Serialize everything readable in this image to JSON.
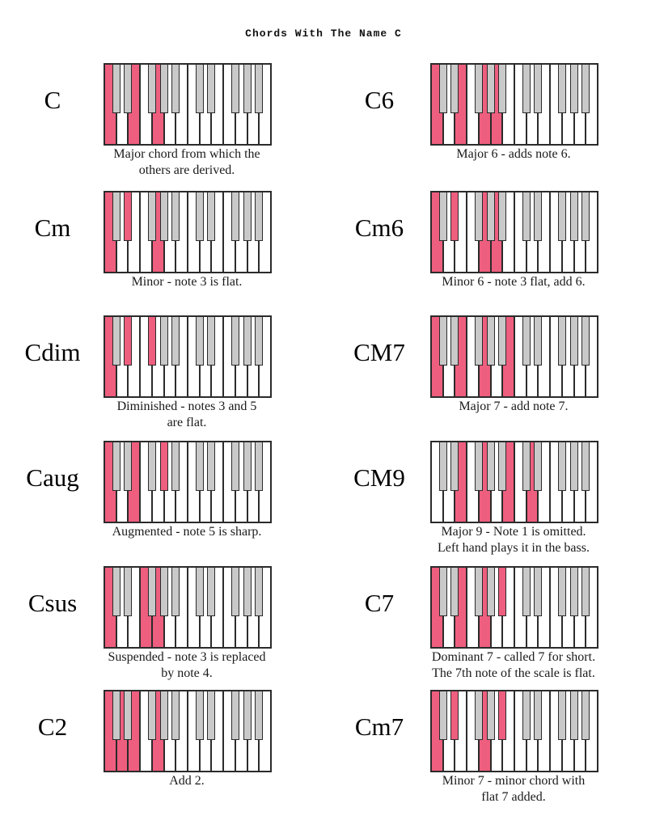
{
  "title": "Chords With The Name C",
  "colors": {
    "highlight": "#EE5E7E",
    "black_key": "#C9C9C9",
    "key_border": "#2B2B2B",
    "background": "#FFFFFF"
  },
  "keyboard": {
    "white_key_count": 14,
    "black_after_white_indices": [
      0,
      1,
      3,
      4,
      5,
      7,
      8,
      10,
      11,
      12
    ]
  },
  "chords": [
    {
      "name": "C",
      "caption": "Major chord from which the\nothers are derived.",
      "highlight_white": [
        0,
        2,
        4
      ],
      "highlight_black": []
    },
    {
      "name": "C6",
      "caption": "Major 6 - adds note 6.",
      "highlight_white": [
        0,
        2,
        4,
        5
      ],
      "highlight_black": []
    },
    {
      "name": "Cm",
      "caption": "Minor - note 3 is flat.",
      "highlight_white": [
        0,
        4
      ],
      "highlight_black": [
        1
      ]
    },
    {
      "name": "Cm6",
      "caption": "Minor 6 - note 3 flat, add 6.",
      "highlight_white": [
        0,
        4,
        5
      ],
      "highlight_black": [
        1
      ]
    },
    {
      "name": "Cdim",
      "caption": "Diminished - notes 3 and 5\nare flat.",
      "highlight_white": [
        0
      ],
      "highlight_black": [
        1,
        3
      ]
    },
    {
      "name": "CM7",
      "caption": "Major 7 - add note 7.",
      "highlight_white": [
        0,
        2,
        4,
        6
      ],
      "highlight_black": []
    },
    {
      "name": "Caug",
      "caption": "Augmented - note 5 is sharp.",
      "highlight_white": [
        0,
        2
      ],
      "highlight_black": [
        4
      ]
    },
    {
      "name": "CM9",
      "caption": "Major 9 - Note 1 is omitted.\nLeft hand plays it in the bass.",
      "highlight_white": [
        2,
        4,
        6,
        8
      ],
      "highlight_black": []
    },
    {
      "name": "Csus",
      "caption": "Suspended - note 3 is replaced\nby note 4.",
      "highlight_white": [
        0,
        3,
        4
      ],
      "highlight_black": []
    },
    {
      "name": "C7",
      "caption": "Dominant 7 - called 7 for short.\nThe 7th note of the scale is flat.",
      "highlight_white": [
        0,
        2,
        4
      ],
      "highlight_black": [
        5
      ]
    },
    {
      "name": "C2",
      "caption": "Add 2.",
      "highlight_white": [
        0,
        1,
        2,
        4
      ],
      "highlight_black": []
    },
    {
      "name": "Cm7",
      "caption": "Minor 7 - minor chord with\nflat 7 added.",
      "highlight_white": [
        0,
        4
      ],
      "highlight_black": [
        1,
        5
      ]
    }
  ]
}
